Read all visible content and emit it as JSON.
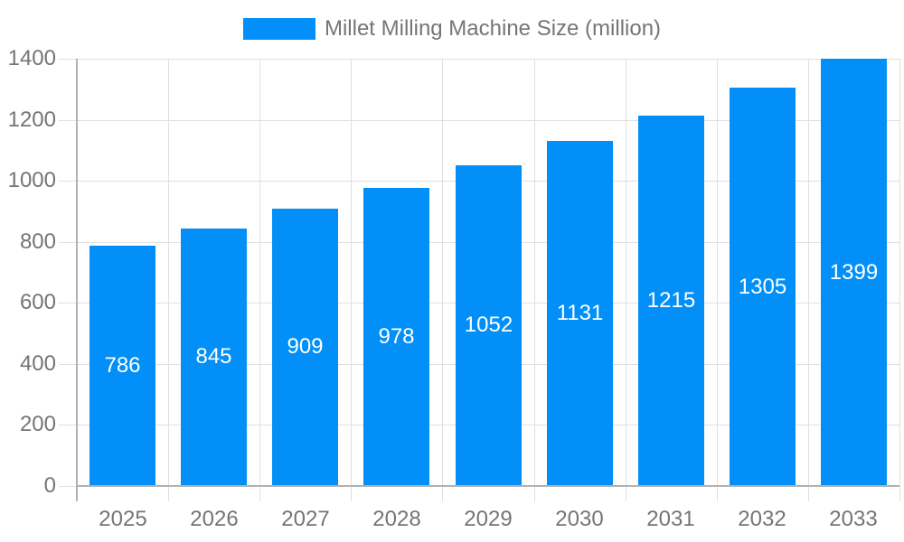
{
  "chart_data": {
    "type": "bar",
    "title": "",
    "categories": [
      "2025",
      "2026",
      "2027",
      "2028",
      "2029",
      "2030",
      "2031",
      "2032",
      "2033"
    ],
    "values": [
      786,
      845,
      909,
      978,
      1052,
      1131,
      1215,
      1305,
      1399
    ],
    "value_labels": [
      "786",
      "845",
      "909",
      "978",
      "1052",
      "1131",
      "1215",
      "1305",
      "1399"
    ],
    "y_ticks": [
      0,
      200,
      400,
      600,
      800,
      1000,
      1200,
      1400
    ],
    "y_tick_labels": [
      "0",
      "200",
      "400",
      "600",
      "800",
      "1000",
      "1200",
      "1400"
    ],
    "ylim": [
      0,
      1400
    ],
    "xlabel": "",
    "ylabel": "",
    "grid": true,
    "legend_position": "top",
    "legend_entries": [
      {
        "label": "Millet Milling Machine Size (million)",
        "color": "#0290F8"
      }
    ],
    "colors": {
      "bar": "#0290F8",
      "grid": "#e0e0e0",
      "axis": "#b1b1b1",
      "text": "#757575",
      "value_label": "#ffffff"
    }
  }
}
